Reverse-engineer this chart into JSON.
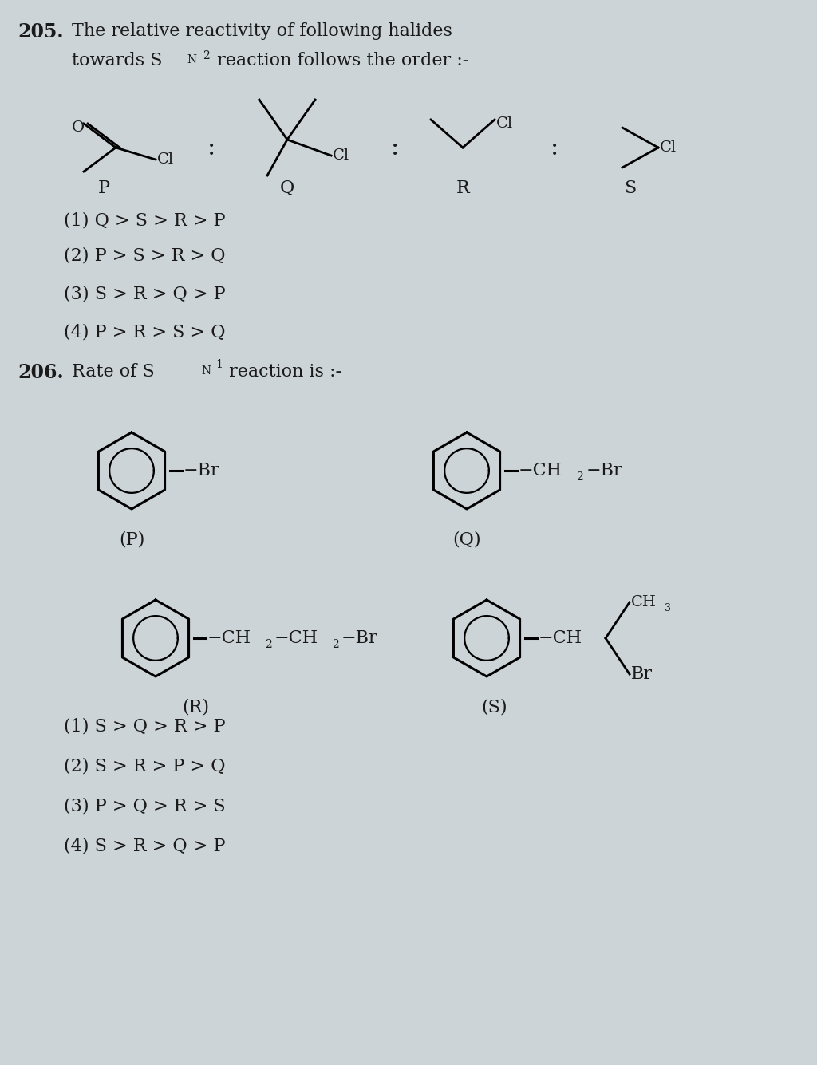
{
  "bg_color": "#cdd4d8",
  "text_color": "#1a1a1a",
  "answers_205": [
    "(1) Q > S > R > P",
    "(2) P > S > R > Q",
    "(3) S > R > Q > P",
    "(4) P > R > S > Q"
  ],
  "answers_206": [
    "(1) S > Q > R > P",
    "(2) S > R > P > Q",
    "(3) P > Q > R > S",
    "(4) S > R > Q > P"
  ]
}
